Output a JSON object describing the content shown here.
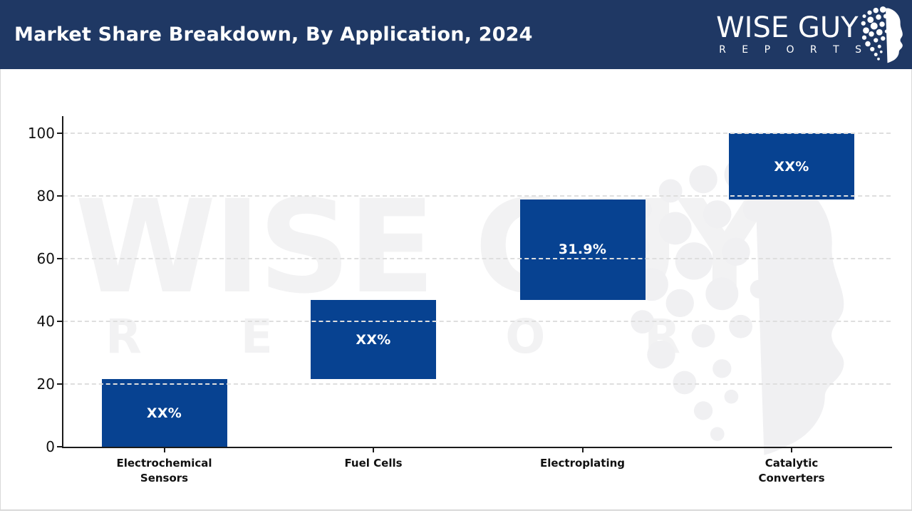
{
  "header": {
    "title": "Market Share Breakdown, By Application, 2024",
    "bg_color": "#1f3864",
    "logo": {
      "line1": "WISE GUY",
      "line2": "R E P O R T S",
      "icon": "wise-guy-face-logo"
    }
  },
  "watermark": {
    "line1": "WISE GUY",
    "line2": "R E P O R T S"
  },
  "chart_data": {
    "type": "bar",
    "subtype": "floating-waterfall",
    "title": "Market Share Breakdown, By Application, 2024",
    "categories": [
      "Electrochemical Sensors",
      "Fuel Cells",
      "Electroplating",
      "Catalytic Converters"
    ],
    "segments": [
      {
        "category": "Electrochemical Sensors",
        "start": 0,
        "end": 21.5,
        "value": 21.5,
        "label": "XX%"
      },
      {
        "category": "Fuel Cells",
        "start": 21.5,
        "end": 46.9,
        "value": 25.4,
        "label": "XX%"
      },
      {
        "category": "Electroplating",
        "start": 46.9,
        "end": 78.8,
        "value": 31.9,
        "label": "31.9%"
      },
      {
        "category": "Catalytic Converters",
        "start": 78.8,
        "end": 100,
        "value": 21.2,
        "label": "XX%"
      }
    ],
    "xlabel": "",
    "ylabel": "",
    "ylim": [
      0,
      105.5
    ],
    "yticks": [
      0,
      20,
      40,
      60,
      80,
      100
    ],
    "grid": "horizontal dashed",
    "legend": "none",
    "bar_color": "#074291",
    "bar_label_color": "#ffffff",
    "axis_color": "#1a1a1a",
    "grid_color": "#dedede"
  }
}
